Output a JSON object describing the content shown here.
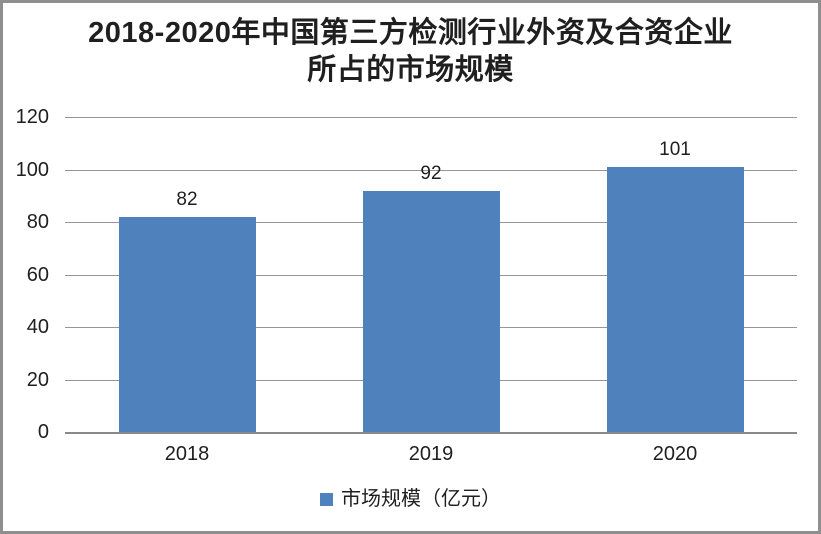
{
  "chart_data": {
    "type": "bar",
    "title": "2018-2020年中国第三方检测行业外资及合资企业所占的市场规模",
    "title_lines": [
      "2018-2020年中国第三方检测行业外资及合资企业",
      "所占的市场规模"
    ],
    "categories": [
      "2018",
      "2019",
      "2020"
    ],
    "series": [
      {
        "name": "市场规模（亿元）",
        "values": [
          82,
          92,
          101
        ]
      }
    ],
    "data_labels_shown": true,
    "xlabel": "",
    "ylabel": "",
    "ylim": [
      0,
      120
    ],
    "yticks": [
      0,
      20,
      40,
      60,
      80,
      100,
      120
    ],
    "grid": true,
    "legend_position": "bottom",
    "colors": {
      "bar": "#4F81BD",
      "gridline": "#969696",
      "axis": "#8a8a8a",
      "frame_border": "#8f8f8f",
      "text": "#1f1f1f"
    }
  }
}
